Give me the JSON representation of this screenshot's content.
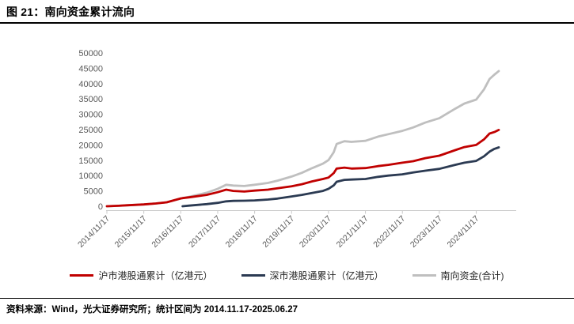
{
  "header": {
    "title": "图 21：南向资金累计流向"
  },
  "footer": {
    "text": "资料来源：Wind，光大证券研究所；统计区间为 2014.11.17-2025.06.27"
  },
  "colors": {
    "accent_red": "#C00000",
    "navy": "#2B3A52",
    "gray_line": "#BFBFBF",
    "axis_line": "#C9C9C9",
    "axis_label": "#595959"
  },
  "chart_data": {
    "type": "line",
    "title": "南向资金累计流向",
    "grid": false,
    "legend_position": "bottom",
    "ylim": [
      0,
      50000
    ],
    "y_tick_step": 5000,
    "y_ticks": [
      0,
      5000,
      10000,
      15000,
      20000,
      25000,
      30000,
      35000,
      40000,
      45000,
      50000
    ],
    "x_tick_labels": [
      "2014/11/17",
      "2015/11/17",
      "2016/11/17",
      "2017/11/17",
      "2018/11/17",
      "2019/11/17",
      "2020/11/17",
      "2021/11/17",
      "2022/11/17",
      "2023/11/17",
      "2024/11/17"
    ],
    "x_tick_years": [
      2014.88,
      2015.88,
      2016.88,
      2017.88,
      2018.88,
      2019.88,
      2020.88,
      2021.88,
      2022.88,
      2023.88,
      2024.88
    ],
    "x_unit": "decimal_year",
    "x": [
      2014.88,
      2015.2,
      2015.41,
      2015.88,
      2016.2,
      2016.5,
      2016.88,
      2016.93,
      2017.11,
      2017.58,
      2017.88,
      2018.11,
      2018.3,
      2018.6,
      2018.88,
      2019.24,
      2019.5,
      2019.88,
      2020.16,
      2020.43,
      2020.73,
      2020.88,
      2021.02,
      2021.1,
      2021.31,
      2021.5,
      2021.88,
      2022.22,
      2022.5,
      2022.88,
      2023.17,
      2023.5,
      2023.88,
      2024.31,
      2024.56,
      2024.88,
      2025.09,
      2025.24,
      2025.37,
      2025.49
    ],
    "series": [
      {
        "name": "沪市港股通累计（亿港元）",
        "color": "#C00000",
        "values": [
          0,
          150,
          300,
          600,
          900,
          1300,
          2550,
          2650,
          2900,
          3700,
          4600,
          5400,
          5000,
          4800,
          5100,
          5400,
          5850,
          6500,
          7200,
          8100,
          8900,
          9350,
          10800,
          12300,
          12600,
          12300,
          12450,
          13100,
          13500,
          14200,
          14700,
          15700,
          16500,
          18300,
          19300,
          20000,
          21800,
          23700,
          24200,
          24900
        ]
      },
      {
        "name": "深市港股通累计（亿港元）",
        "color": "#2B3A52",
        "values": [
          null,
          null,
          null,
          null,
          null,
          null,
          null,
          0,
          200,
          700,
          1100,
          1600,
          1750,
          1800,
          1900,
          2200,
          2500,
          3200,
          3700,
          4300,
          5000,
          5700,
          6800,
          8000,
          8600,
          8700,
          8900,
          9600,
          10000,
          10400,
          11000,
          11600,
          12200,
          13500,
          14200,
          14800,
          16300,
          17800,
          18700,
          19200
        ]
      },
      {
        "name": "南向资金(合计)",
        "color": "#BFBFBF",
        "values": [
          0,
          150,
          300,
          600,
          900,
          1300,
          2550,
          2650,
          3100,
          4400,
          5700,
          7000,
          6750,
          6600,
          7000,
          7600,
          8350,
          9700,
          10900,
          12400,
          13900,
          15050,
          17600,
          20300,
          21200,
          21000,
          21350,
          22700,
          23500,
          24600,
          25700,
          27300,
          28700,
          31800,
          33500,
          34800,
          38100,
          41500,
          42900,
          44100
        ]
      }
    ]
  }
}
